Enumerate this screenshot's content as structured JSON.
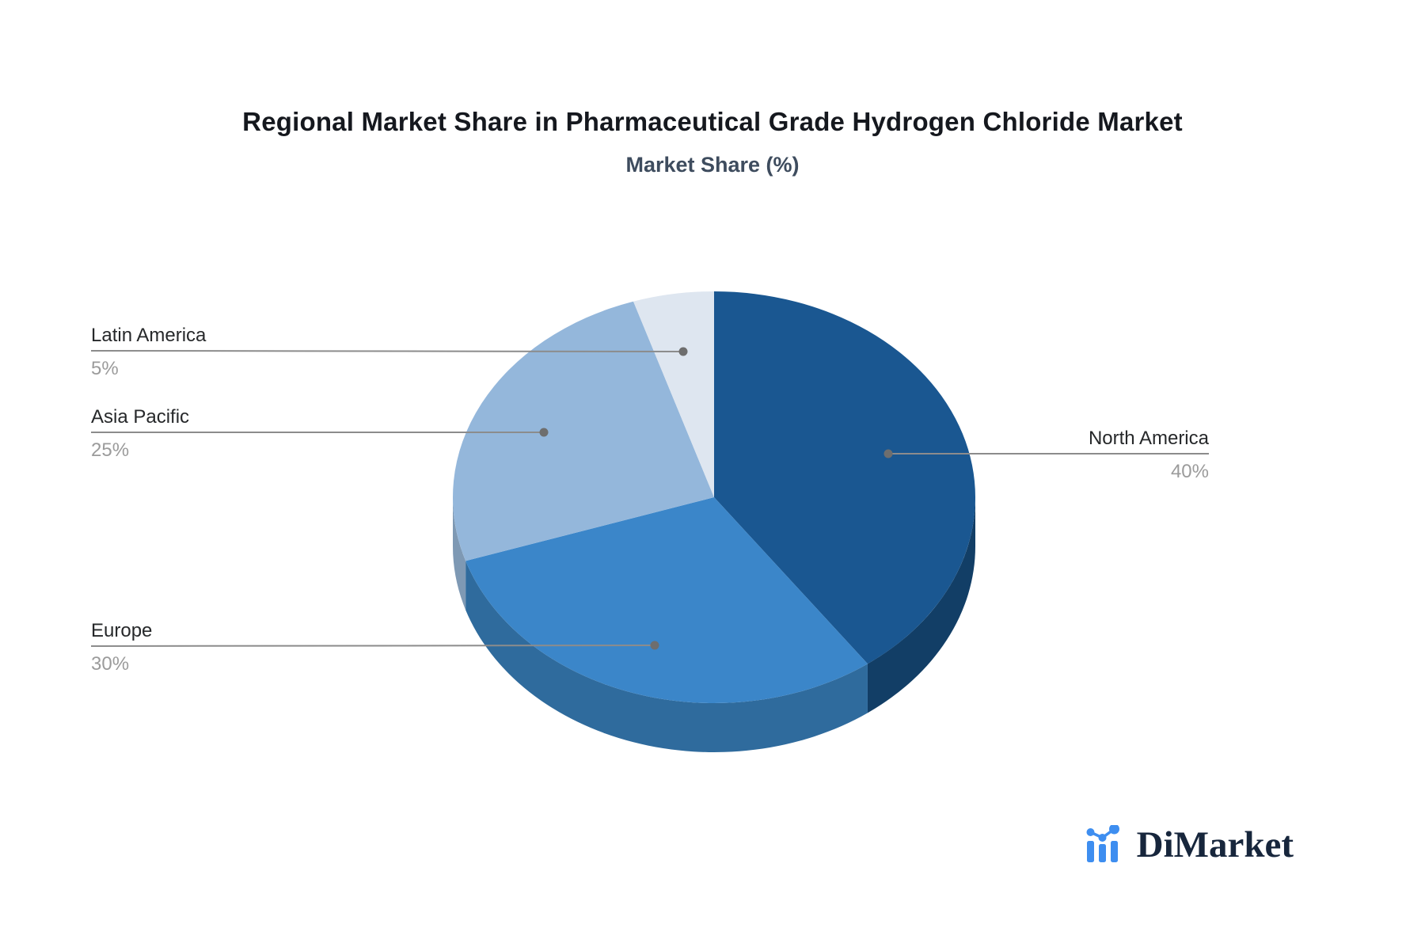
{
  "chart_data": {
    "type": "pie",
    "title": "Regional Market Share in Pharmaceutical Grade Hydrogen Chloride Market",
    "subtitle": "Market Share (%)",
    "effect": "3d",
    "start_angle_deg": 0,
    "direction": "clockwise",
    "labels_position": "callout",
    "slices": [
      {
        "label": "North America",
        "value": 40,
        "pct_label": "40%",
        "color": "#1A5791",
        "side_color": "#123E66"
      },
      {
        "label": "Europe",
        "value": 30,
        "pct_label": "30%",
        "color": "#3B86C9",
        "side_color": "#2F6B9D"
      },
      {
        "label": "Asia Pacific",
        "value": 25,
        "pct_label": "25%",
        "color": "#94B7DB",
        "side_color": "#7E99B4"
      },
      {
        "label": "Latin America",
        "value": 5,
        "pct_label": "5%",
        "color": "#DEE6F0",
        "side_color": "#C3CFDE"
      }
    ]
  },
  "colors": {
    "background": "#FFFFFF",
    "title": "#15181E",
    "subtitle": "#3E4C5E",
    "label_text": "#26282A",
    "pct_text": "#9B9B9B",
    "leader_line": "#8C8C8C",
    "leader_dot": "#6E6E6E",
    "brand_icon": "#3E8EF0",
    "brand_text": "#17263C"
  },
  "brand": {
    "name": "DiMarket",
    "icon": "bar-line-chart-icon"
  }
}
